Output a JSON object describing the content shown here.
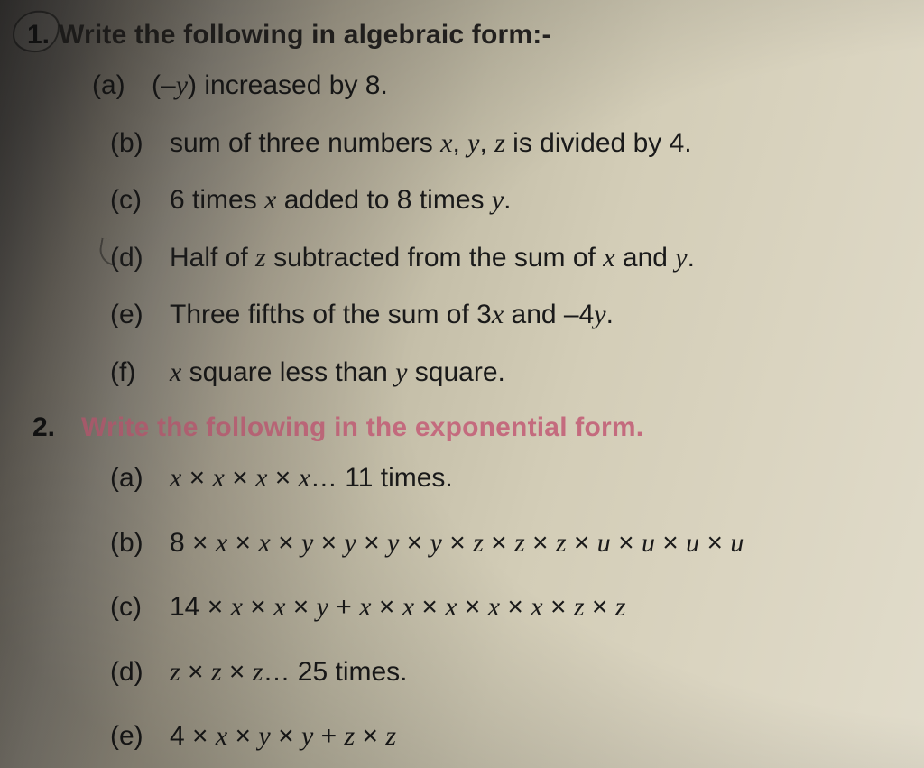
{
  "colors": {
    "text": "#1a1a1a",
    "title_q1": "#262422",
    "title_q2": "#c46b7e",
    "pen": "rgba(20,20,20,0.5)"
  },
  "fonts": {
    "family": "Comic Sans MS, Segoe UI, sans-serif",
    "size_title": 30,
    "size_body": 30
  },
  "q1": {
    "number": "1.",
    "title": "Write the following in algebraic form:-",
    "parts": {
      "a": {
        "label": "(a)",
        "html": "(–<span class='ital'>y</span>) increased by 8."
      },
      "b": {
        "label": "(b)",
        "html": "sum of three numbers <span class='ital'>x</span>, <span class='ital'>y</span>, <span class='ital'>z</span> is divided by 4."
      },
      "c": {
        "label": "(c)",
        "html": "6 times <span class='ital'>x</span> added to 8 times <span class='ital'>y</span>."
      },
      "d": {
        "label": "(d)",
        "html": "Half of <span class='ital'>z</span> subtracted from the sum of <span class='ital'>x</span> and <span class='ital'>y</span>."
      },
      "e": {
        "label": "(e)",
        "html": "Three fifths of the sum of 3<span class='ital'>x</span> and –4<span class='ital'>y</span>."
      },
      "f": {
        "label": "(f)",
        "html": "<span class='ital'>x</span> square less than <span class='ital'>y</span> square."
      }
    }
  },
  "q2": {
    "number": "2.",
    "title": "Write the following in the exponential form.",
    "parts": {
      "a": {
        "label": "(a)",
        "html": "<span class='ital'>x</span> × <span class='ital'>x</span> × <span class='ital'>x</span> × <span class='ital'>x</span>… 11 times."
      },
      "b": {
        "label": "(b)",
        "html": "8 × <span class='ital'>x</span> × <span class='ital'>x</span> × <span class='ital'>y</span> × <span class='ital'>y</span> × <span class='ital'>y</span> × <span class='ital'>y</span> × <span class='ital'>z</span> × <span class='ital'>z</span> × <span class='ital'>z</span> × <span class='ital'>u</span> × <span class='ital'>u</span> × <span class='ital'>u</span> × <span class='ital'>u</span>"
      },
      "c": {
        "label": "(c)",
        "html": "14 × <span class='ital'>x</span> × <span class='ital'>x</span> × <span class='ital'>y</span> + <span class='ital'>x</span> × <span class='ital'>x</span> × <span class='ital'>x</span> × <span class='ital'>x</span> × <span class='ital'>x</span> × <span class='ital'>z</span> × <span class='ital'>z</span>"
      },
      "d": {
        "label": "(d)",
        "html": "<span class='ital'>z</span> × <span class='ital'>z</span> × <span class='ital'>z</span>… 25 times."
      },
      "e": {
        "label": "(e)",
        "html": "4 × <span class='ital'>x</span> × <span class='ital'>y</span> × <span class='ital'>y</span> + <span class='ital'>z</span> × <span class='ital'>z</span>"
      }
    }
  }
}
